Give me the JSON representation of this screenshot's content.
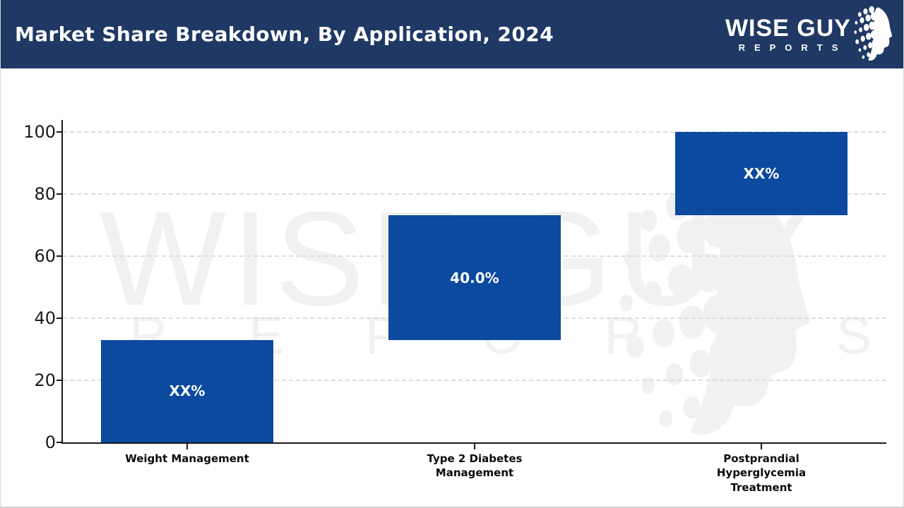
{
  "header": {
    "title": "Market Share Breakdown, By Application, 2024",
    "bg_color": "#1f3864",
    "text_color": "#ffffff"
  },
  "logo": {
    "line1": "WISE GUY",
    "line2": "REPORTS"
  },
  "watermark": {
    "line1": "WISE GUY",
    "line2": "REPORTS",
    "color": "#f1f1f1"
  },
  "chart_data": {
    "type": "bar",
    "variant": "waterfall",
    "title": "Market Share Breakdown, By Application, 2024",
    "categories": [
      "Weight Management",
      "Type 2 Diabetes\nManagement",
      "Postprandial\nHyperglycemia\nTreatment"
    ],
    "segments": [
      {
        "category": "Weight Management",
        "label": "XX%",
        "start": 0,
        "end": 33
      },
      {
        "category": "Type 2 Diabetes Management",
        "label": "40.0%",
        "start": 33,
        "end": 73
      },
      {
        "category": "Postprandial Hyperglycemia Treatment",
        "label": "XX%",
        "start": 73,
        "end": 100
      }
    ],
    "y_ticks": [
      0,
      20,
      40,
      60,
      80,
      100
    ],
    "ylim": [
      0,
      104
    ],
    "xlabel": "",
    "ylabel": "",
    "grid": {
      "style": "dashed",
      "color": "#dcdcdc"
    },
    "legend": "none",
    "bar_color": "#0b4a9e",
    "bar_label_color": "#ffffff",
    "axis_color": "#1a1a1a",
    "tick_label_color": "#1a1a1a",
    "category_label_color": "#0a0a0a"
  }
}
